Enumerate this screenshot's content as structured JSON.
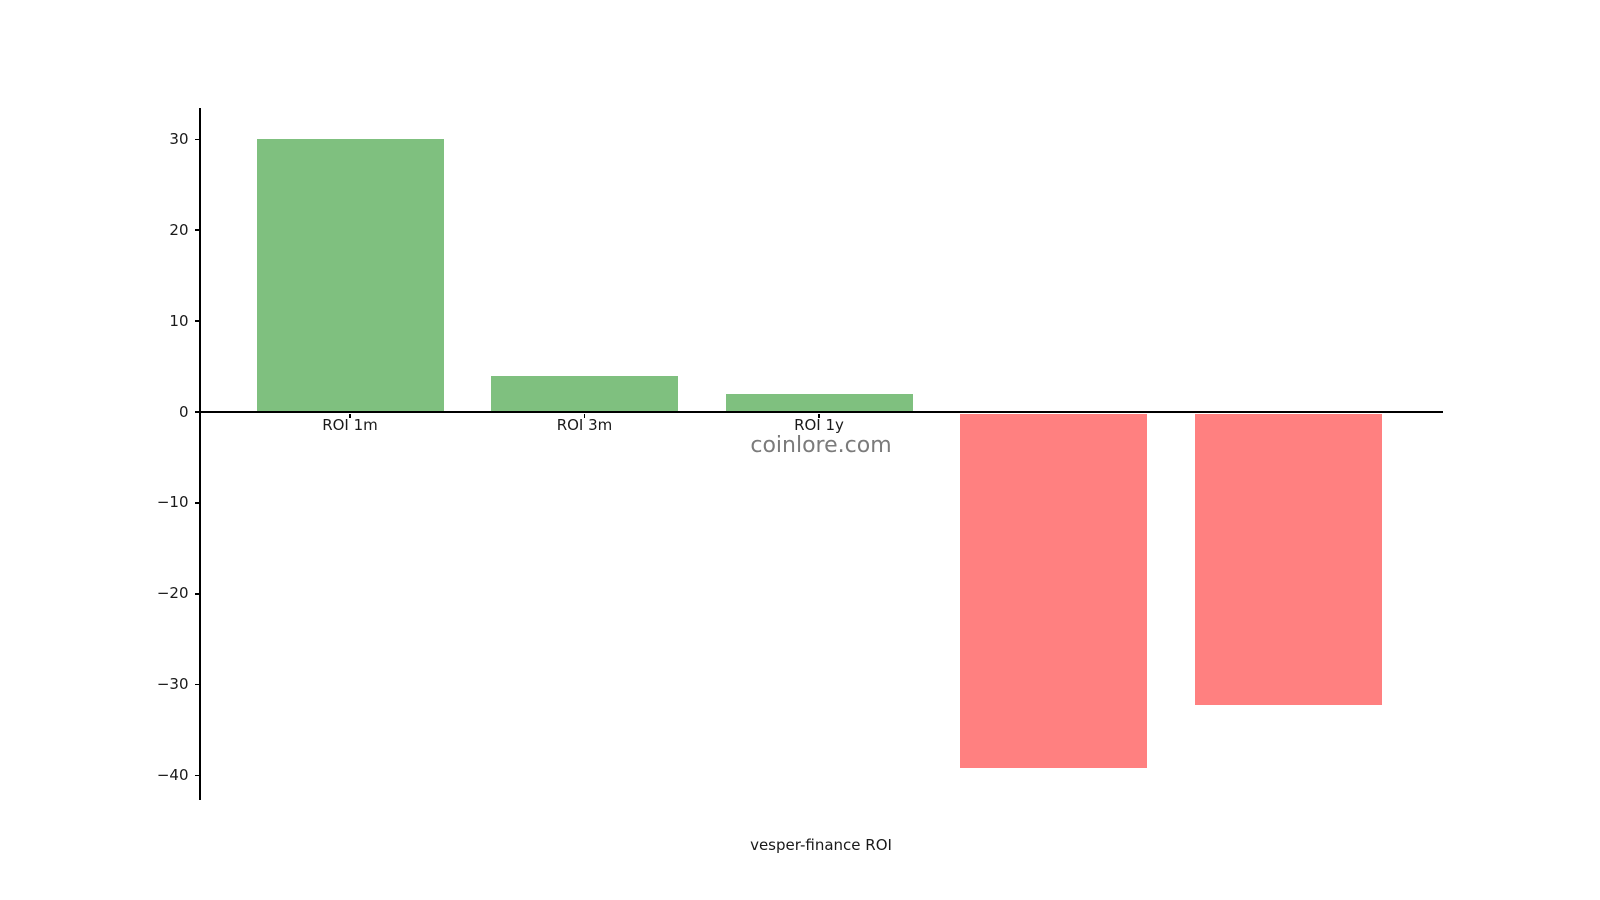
{
  "page": {
    "background": "#ffffff"
  },
  "chart_data": {
    "type": "bar",
    "title": "vesper-finance ROI",
    "watermark": "coinlore.com",
    "categories": [
      "ROI 1m",
      "ROI 3m",
      "ROI 1y",
      "",
      ""
    ],
    "values": [
      30,
      4,
      2,
      -39,
      -32
    ],
    "series": [
      {
        "name": "ROI",
        "values": [
          30,
          4,
          2,
          -39,
          -32
        ]
      }
    ],
    "bar_colors": [
      "#7fc07f",
      "#7fc07f",
      "#7fc07f",
      "#ff8080",
      "#ff8080"
    ],
    "positive_color": "#7fc07f",
    "negative_color": "#ff8080",
    "y_ticks": [
      30,
      20,
      10,
      0,
      -10,
      -20,
      -30,
      -40
    ],
    "y_tick_labels": [
      "30",
      "20",
      "10",
      "0",
      "−10",
      "−20",
      "−30",
      "−40"
    ],
    "ylim": [
      -42.6,
      33.6
    ],
    "xlabel": "",
    "ylabel": "",
    "grid": false,
    "legend_position": "none",
    "axis_color": "#000000",
    "tick_label_color": "#1a1a1a",
    "watermark_color": "#7b7b7b",
    "note": "x tick labels of the two negative bars are hidden behind the red bars"
  }
}
